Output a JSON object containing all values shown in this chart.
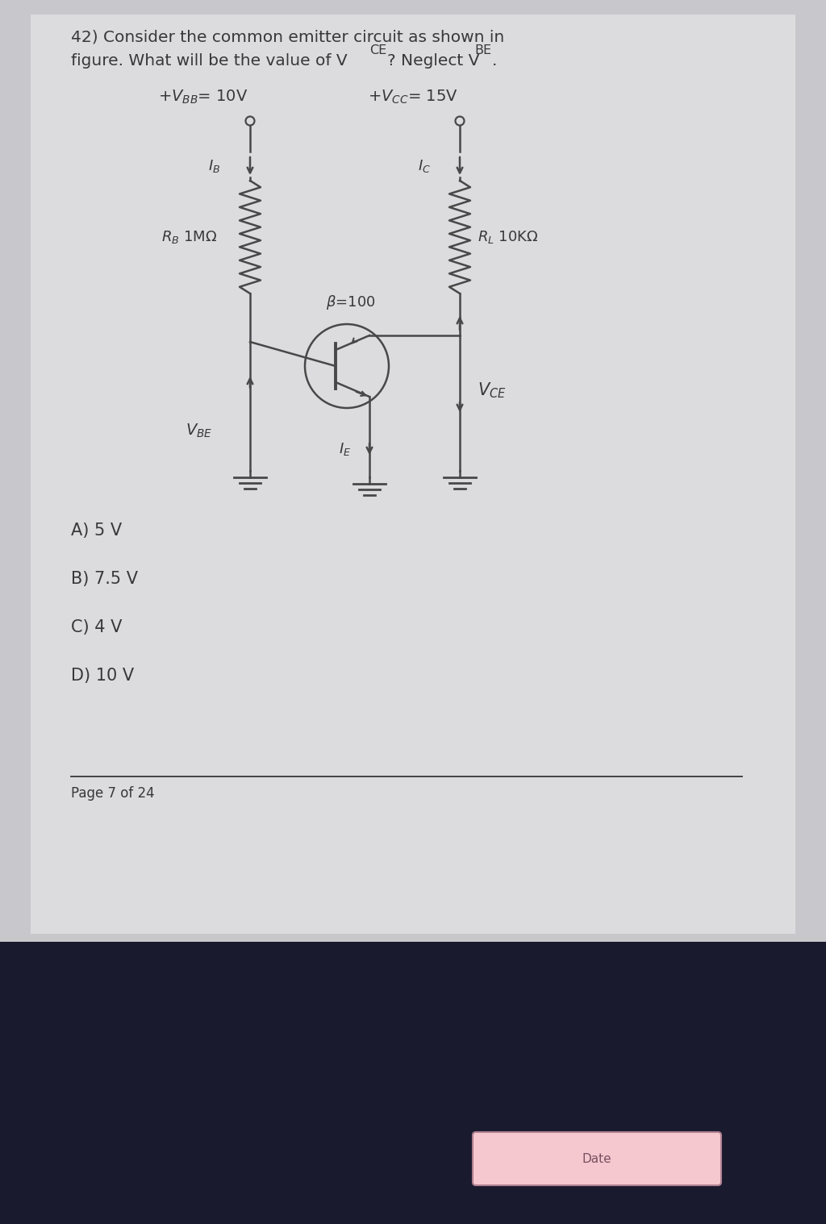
{
  "bg_top_color": "#c8c8cc",
  "bg_bottom_color": "#1a1a2e",
  "paper_color": "#e0e0e4",
  "title_line1": "42) Consider the common emitter circuit as shown in",
  "title_line2": "figure. What will be the value of V",
  "title_line2_sub": "CE",
  "title_line2_end": "? Neglect V",
  "title_line2_sub2": "BE",
  "title_line2_end2": ".",
  "options": [
    "A) 5 V",
    "B) 7.5 V",
    "C) 4 V",
    "D) 10 V"
  ],
  "page_label": "Page 7 of 24",
  "text_color": "#383838",
  "line_color": "#484848",
  "font_size_title": 14.5,
  "font_size_circuit": 13,
  "font_size_options": 15,
  "font_size_page": 12
}
